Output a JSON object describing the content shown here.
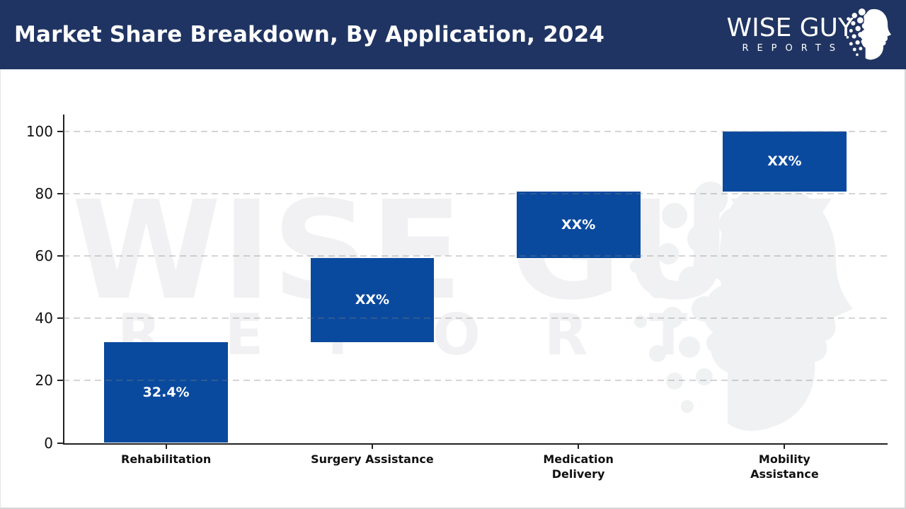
{
  "header": {
    "title": "Market Share Breakdown, By Application, 2024",
    "logo": {
      "line1": "WISE GUY",
      "line2": "REPORTS"
    }
  },
  "watermark": {
    "line1": "WISE GUY",
    "line2": "REPORTS"
  },
  "chart_data": {
    "type": "bar",
    "variant": "waterfall",
    "title": "Market Share Breakdown, By Application, 2024",
    "categories": [
      "Rehabilitation",
      "Surgery Assistance",
      "Medication\nDelivery",
      "Mobility\nAssistance"
    ],
    "segments": [
      {
        "category": "Rehabilitation",
        "label": "32.4%",
        "start": 0,
        "end": 32.4
      },
      {
        "category": "Surgery Assistance",
        "label": "XX%",
        "start": 32.4,
        "end": 59.4
      },
      {
        "category": "Medication Delivery",
        "label": "XX%",
        "start": 59.4,
        "end": 80.8
      },
      {
        "category": "Mobility Assistance",
        "label": "XX%",
        "start": 80.8,
        "end": 100
      }
    ],
    "xlabel": "",
    "ylabel": "",
    "yticks": [
      0,
      20,
      40,
      60,
      80,
      100
    ],
    "ylim": [
      0,
      105
    ],
    "grid": "horizontal-dashed",
    "legend_position": "none",
    "colors": {
      "bar": "#0a4a9e",
      "bar_label": "#ffffff",
      "header_bg": "#1f3462",
      "axis": "#222222",
      "gridline": "#d8d8d8",
      "tick_label": "#111111",
      "watermark": "#f1f1f3"
    }
  }
}
